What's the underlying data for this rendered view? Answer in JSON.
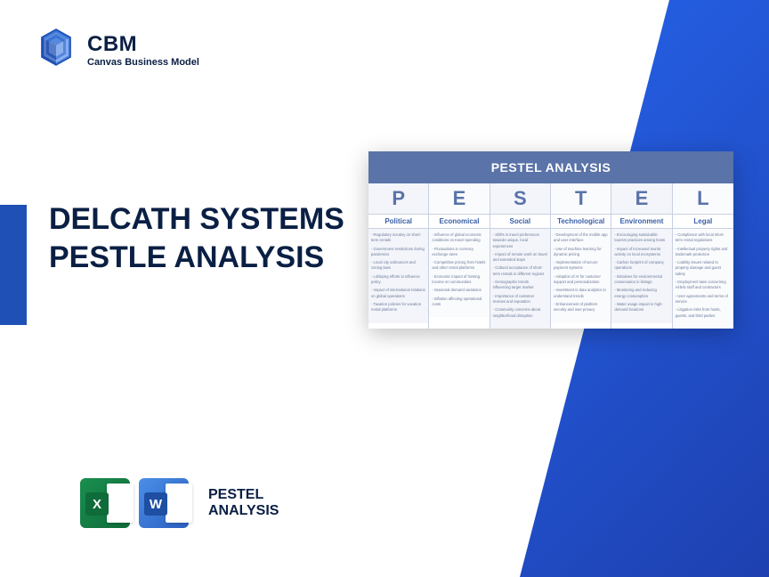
{
  "logo": {
    "brand": "CBM",
    "tagline": "Canvas Business Model"
  },
  "title": "DELCATH SYSTEMS PESTLE ANALYSIS",
  "footer": {
    "excel_badge": "X",
    "word_badge": "W",
    "label_line1": "PESTEL",
    "label_line2": "ANALYSIS"
  },
  "colors": {
    "primary_blue": "#1e50b5",
    "dark_navy": "#0a1f44",
    "gradient_start": "#2563eb",
    "gradient_end": "#1e40af",
    "pestle_header": "#5a73a8",
    "pestle_label": "#3a5fa8"
  },
  "pestle": {
    "header": "PESTEL ANALYSIS",
    "columns": [
      {
        "letter": "P",
        "label": "Political",
        "items": [
          "- Regulatory scrutiny on short-term rentals",
          "- Government restrictions during pandemics",
          "- Local city ordinances and zoning laws",
          "- Lobbying efforts to influence policy",
          "- Impact of international relations on global operations",
          "- Taxation policies for vacation rental platforms"
        ]
      },
      {
        "letter": "E",
        "label": "Economical",
        "items": [
          "- Influence of global economic conditions on travel spending",
          "- Fluctuations in currency exchange rates",
          "- Competitive pricing from hotels and other rental platforms",
          "- Economic impact of hosting income on communities",
          "- Seasonal demand variations",
          "- Inflation affecting operational costs"
        ]
      },
      {
        "letter": "S",
        "label": "Social",
        "items": [
          "- Shifts in travel preferences towards unique, local experiences",
          "- Impact of remote work on travel and extended stays",
          "- Cultural acceptance of short-term rentals in different regions",
          "- Demographic trends influencing target market",
          "- Importance of customer reviews and reputation",
          "- Community concerns about neighborhood disruption"
        ]
      },
      {
        "letter": "T",
        "label": "Technological",
        "items": [
          "- Development of the mobile app and user interface",
          "- Use of machine learning for dynamic pricing",
          "- Implementation of secure payment systems",
          "- Adoption of AI for customer support and personalization",
          "- Investment in data analytics to understand trends",
          "- Enhancement of platform security and user privacy"
        ]
      },
      {
        "letter": "E",
        "label": "Environment",
        "items": [
          "- Encouraging sustainable tourism practices among hosts",
          "- Impact of increased tourist activity on local ecosystems",
          "- Carbon footprint of company operations",
          "- Initiatives for environmental conservation in listings",
          "- Monitoring and reducing energy consumption",
          "- Water usage impact in high-demand locations"
        ]
      },
      {
        "letter": "L",
        "label": "Legal",
        "items": [
          "- Compliance with local short-term rental regulations",
          "- Intellectual property rights and trademark protection",
          "- Liability issues related to property damage and guest safety",
          "- Employment laws concerning Airbnb staff and contractors",
          "- User agreements and terms of service",
          "- Litigation risks from hosts, guests, and third parties"
        ]
      }
    ]
  }
}
